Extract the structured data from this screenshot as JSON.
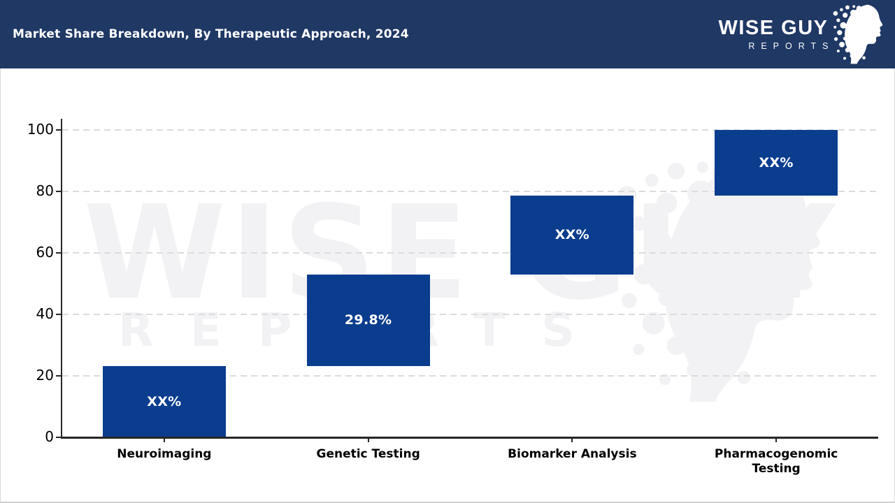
{
  "header": {
    "title": "Market Share Breakdown, By Therapeutic Approach, 2024"
  },
  "logo": {
    "name": "WISE GUY",
    "subtitle": "REPORTS"
  },
  "watermark": {
    "line1": "WISE GUY",
    "line2": "REPORTS"
  },
  "colors": {
    "header_bg": "#1f3864",
    "bar": "#0b3d8f",
    "bar_label": "#ffffff",
    "axis": "#262626",
    "grid": "#dcdcdc",
    "watermark": "#f2f2f4"
  },
  "chart_data": {
    "type": "bar",
    "subtype": "waterfall",
    "title": "Market Share Breakdown, By Therapeutic Approach, 2024",
    "categories": [
      "Neuroimaging",
      "Genetic Testing",
      "Biomarker Analysis",
      "Pharmacogenomic Testing"
    ],
    "bars": [
      {
        "category": "Neuroimaging",
        "start": 0,
        "end": 23.2,
        "value": 23.2,
        "label": "XX%"
      },
      {
        "category": "Genetic Testing",
        "start": 23.2,
        "end": 53.0,
        "value": 29.8,
        "label": "29.8%"
      },
      {
        "category": "Biomarker Analysis",
        "start": 53.0,
        "end": 78.6,
        "value": 25.6,
        "label": "XX%"
      },
      {
        "category": "Pharmacogenomic Testing",
        "start": 78.6,
        "end": 100.0,
        "value": 21.4,
        "label": "XX%"
      }
    ],
    "xlabel": "",
    "ylabel": "",
    "ylim": [
      0,
      100
    ],
    "yticks": [
      0,
      20,
      40,
      60,
      80,
      100
    ],
    "grid": "dashed-horizontal",
    "legend": "none"
  }
}
